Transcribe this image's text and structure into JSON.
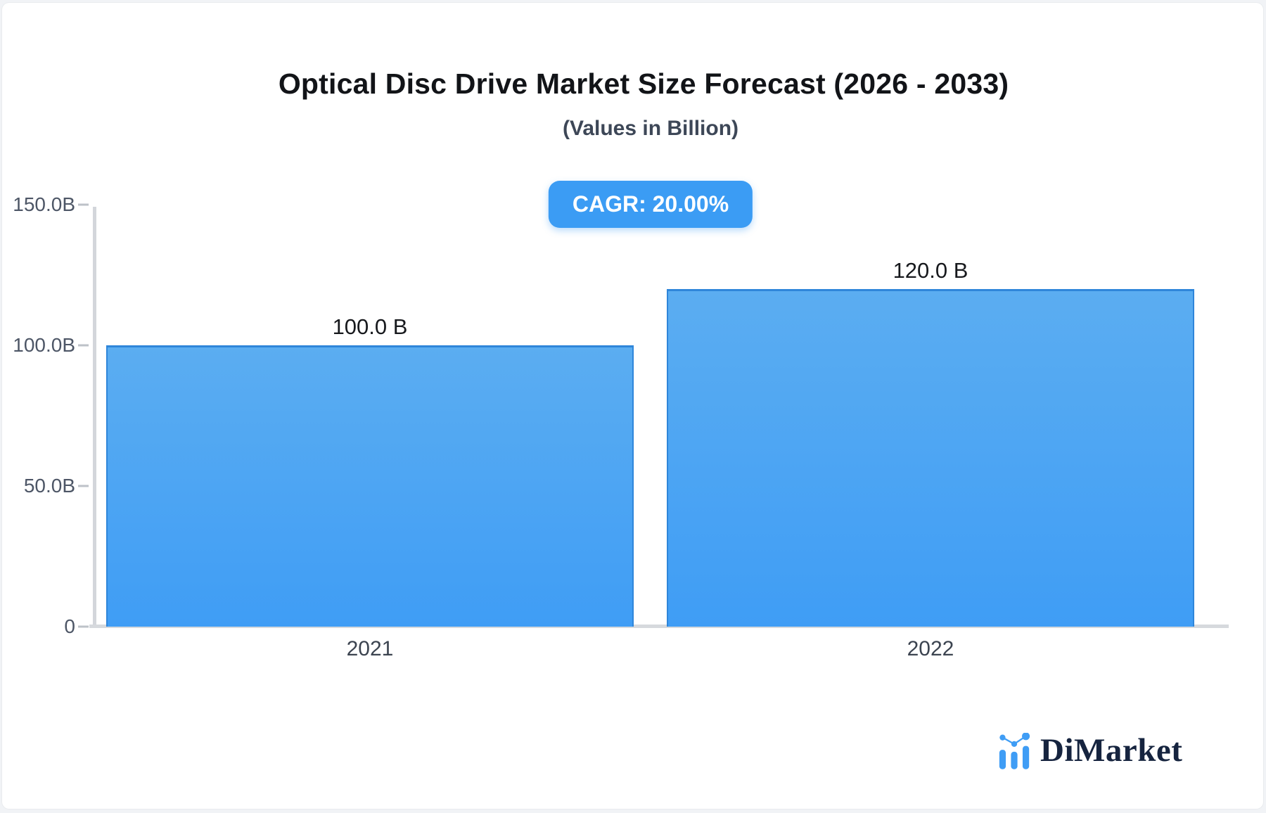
{
  "header": {
    "title": "Optical Disc Drive Market Size Forecast (2026 - 2033)",
    "subtitle": "(Values in Billion)",
    "cagr_label": "CAGR: 20.00%"
  },
  "chart_data": {
    "type": "bar",
    "title": "Optical Disc Drive Market Size Forecast (2026 - 2033)",
    "subtitle": "(Values in Billion)",
    "cagr_percent": 20.0,
    "categories": [
      "2021",
      "2022"
    ],
    "values": [
      100,
      120
    ],
    "value_labels": [
      "100.0 B",
      "120.0 B"
    ],
    "unit": "Billion",
    "ylim": [
      0,
      150
    ],
    "yticks": [
      {
        "label": "150.0B",
        "value": 150
      },
      {
        "label": "100.0B",
        "value": 100
      },
      {
        "label": "50.0B",
        "value": 50
      },
      {
        "label": "0",
        "value": 0
      }
    ],
    "grid": false,
    "legend": false
  },
  "colors": {
    "bar_fill_top": "#5badf1",
    "bar_fill_bottom": "#3f9df5",
    "bar_border": "#2f86da",
    "badge_bg": "#3b9cf4",
    "badge_text": "#ffffff",
    "axis_line": "#d5d8dc",
    "brand_navy": "#16243f",
    "brand_blue": "#3f9df5"
  },
  "brand": {
    "name": "DiMarket",
    "icon": "bar-line-chart-icon"
  }
}
